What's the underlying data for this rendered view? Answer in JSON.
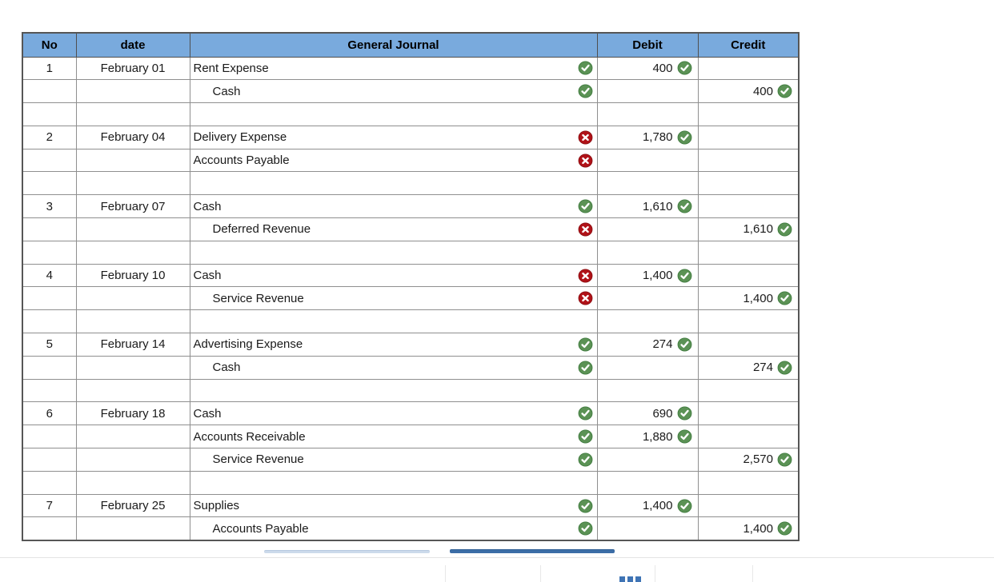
{
  "table": {
    "headers": {
      "no": "No",
      "date": "date",
      "journal": "General Journal",
      "debit": "Debit",
      "credit": "Credit"
    },
    "rows": [
      {
        "no": "1",
        "date": "February 01",
        "account": "Rent Expense",
        "indent": 0,
        "account_status": "correct",
        "debit": "400",
        "debit_status": "correct",
        "credit": "",
        "credit_status": null
      },
      {
        "no": "",
        "date": "",
        "account": "Cash",
        "indent": 1,
        "account_status": "correct",
        "debit": "",
        "debit_status": null,
        "credit": "400",
        "credit_status": "correct"
      },
      {
        "blank": true
      },
      {
        "no": "2",
        "date": "February 04",
        "account": "Delivery Expense",
        "indent": 0,
        "account_status": "incorrect",
        "debit": "1,780",
        "debit_status": "correct",
        "credit": "",
        "credit_status": null
      },
      {
        "no": "",
        "date": "",
        "account": "Accounts Payable",
        "indent": 0,
        "account_status": "incorrect",
        "debit": "",
        "debit_status": null,
        "credit": "",
        "credit_status": null
      },
      {
        "blank": true
      },
      {
        "no": "3",
        "date": "February 07",
        "account": "Cash",
        "indent": 0,
        "account_status": "correct",
        "debit": "1,610",
        "debit_status": "correct",
        "credit": "",
        "credit_status": null
      },
      {
        "no": "",
        "date": "",
        "account": "Deferred Revenue",
        "indent": 1,
        "account_status": "incorrect",
        "debit": "",
        "debit_status": null,
        "credit": "1,610",
        "credit_status": "correct"
      },
      {
        "blank": true
      },
      {
        "no": "4",
        "date": "February 10",
        "account": "Cash",
        "indent": 0,
        "account_status": "incorrect",
        "debit": "1,400",
        "debit_status": "correct",
        "credit": "",
        "credit_status": null
      },
      {
        "no": "",
        "date": "",
        "account": "Service Revenue",
        "indent": 1,
        "account_status": "incorrect",
        "debit": "",
        "debit_status": null,
        "credit": "1,400",
        "credit_status": "correct"
      },
      {
        "blank": true
      },
      {
        "no": "5",
        "date": "February 14",
        "account": "Advertising Expense",
        "indent": 0,
        "account_status": "correct",
        "debit": "274",
        "debit_status": "correct",
        "credit": "",
        "credit_status": null
      },
      {
        "no": "",
        "date": "",
        "account": "Cash",
        "indent": 1,
        "account_status": "correct",
        "debit": "",
        "debit_status": null,
        "credit": "274",
        "credit_status": "correct"
      },
      {
        "blank": true
      },
      {
        "no": "6",
        "date": "February 18",
        "account": "Cash",
        "indent": 0,
        "account_status": "correct",
        "debit": "690",
        "debit_status": "correct",
        "credit": "",
        "credit_status": null
      },
      {
        "no": "",
        "date": "",
        "account": "Accounts Receivable",
        "indent": 0,
        "account_status": "correct",
        "debit": "1,880",
        "debit_status": "correct",
        "credit": "",
        "credit_status": null
      },
      {
        "no": "",
        "date": "",
        "account": "Service Revenue",
        "indent": 1,
        "account_status": "correct",
        "debit": "",
        "debit_status": null,
        "credit": "2,570",
        "credit_status": "correct"
      },
      {
        "blank": true
      },
      {
        "no": "7",
        "date": "February 25",
        "account": "Supplies",
        "indent": 0,
        "account_status": "correct",
        "debit": "1,400",
        "debit_status": "correct",
        "credit": "",
        "credit_status": null
      },
      {
        "no": "",
        "date": "",
        "account": "Accounts Payable",
        "indent": 1,
        "account_status": "correct",
        "debit": "",
        "debit_status": null,
        "credit": "1,400",
        "credit_status": "correct"
      }
    ]
  },
  "icons": {
    "correct": "check-icon",
    "incorrect": "cross-icon",
    "more_options": "ellipsis-icon"
  },
  "colors": {
    "header_bg": "#79aadd",
    "row_ok_bg": "#f5f9f1",
    "row_wrong_bg": "#fdf0ee",
    "check_green": "#5b9255",
    "cross_red": "#b01218",
    "scrollbar_light": "#ccdaeb",
    "scrollbar_dark": "#3c6da6",
    "ellipsis_blue": "#3f74b5"
  }
}
